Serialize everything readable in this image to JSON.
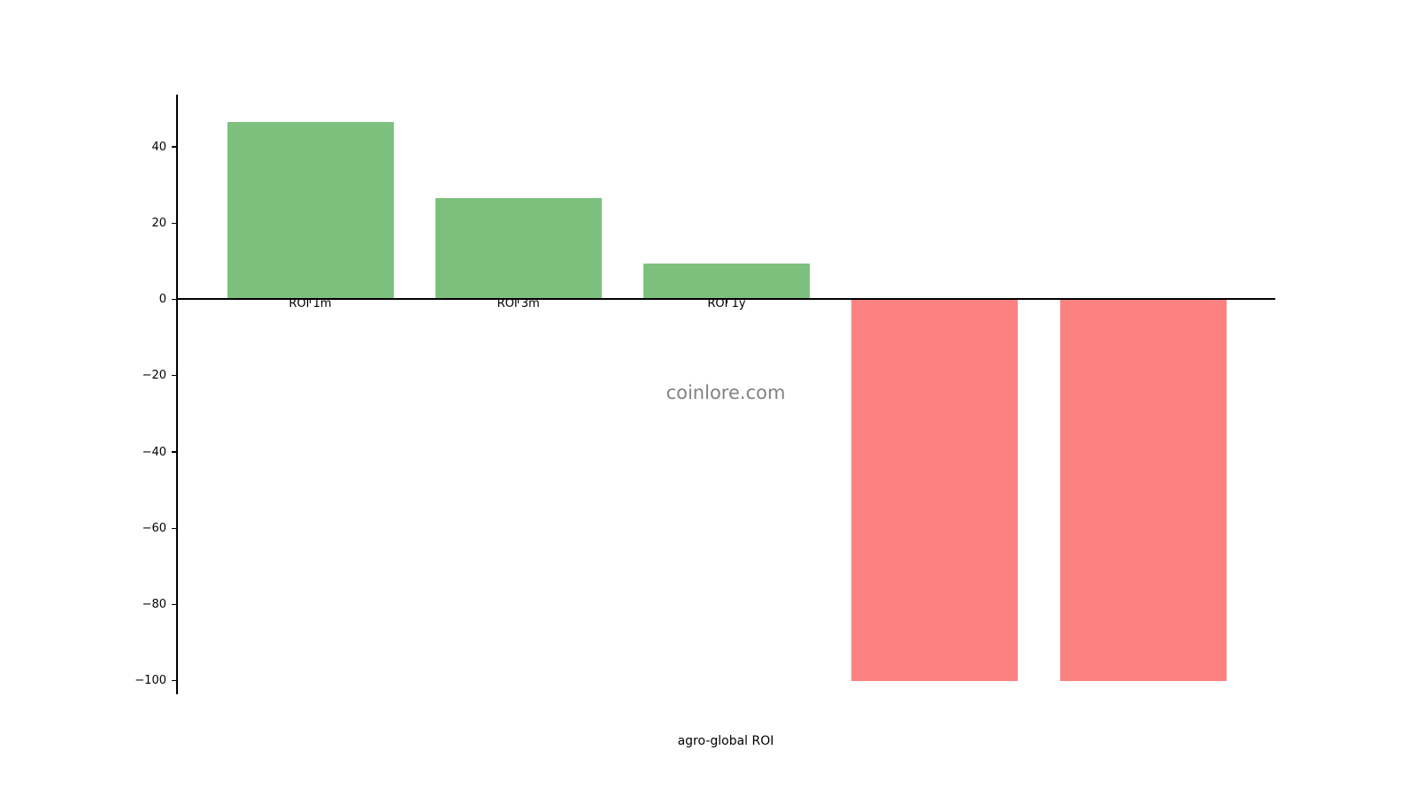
{
  "watermark": "coinlore.com",
  "chart_data": {
    "type": "bar",
    "title": "",
    "xlabel": "agro-global ROI",
    "ylabel": "",
    "categories": [
      "ROI 1m",
      "ROI 3m",
      "ROI 1y",
      "",
      ""
    ],
    "values": [
      46.5,
      26.5,
      9.5,
      -100,
      -100
    ],
    "yticks": [
      40,
      20,
      0,
      -20,
      -40,
      -60,
      -80,
      -100
    ],
    "ylim": [
      -103.5,
      53.6
    ],
    "grid": false,
    "legend": null,
    "colors": {
      "positive_bar": "#7dc07d",
      "negative_bar": "#fc8181",
      "axis": "#000000",
      "tick_text": "#000000",
      "watermark_text": "#828282"
    }
  }
}
